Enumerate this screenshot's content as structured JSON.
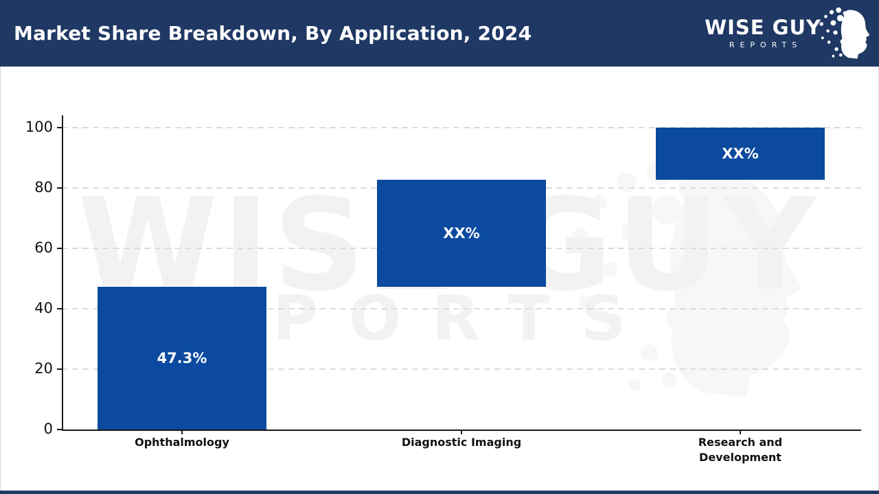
{
  "header": {
    "title": "Market Share Breakdown, By Application, 2024",
    "bg_color": "#1f3864"
  },
  "logo": {
    "line1": "WISE GUY",
    "line2": "REPORTS"
  },
  "watermark": {
    "line1": "WISE GUY",
    "line2": "REPORTS"
  },
  "chart_data": {
    "type": "bar",
    "subtype": "waterfall",
    "title": "Market Share Breakdown, By Application, 2024",
    "categories": [
      "Ophthalmology",
      "Diagnostic Imaging",
      "Research and Development"
    ],
    "bars": [
      {
        "category": "Ophthalmology",
        "label": "47.3%",
        "start": 0,
        "end": 47.3,
        "value_pct": 47.3
      },
      {
        "category": "Diagnostic Imaging",
        "label": "XX%",
        "start": 47.3,
        "end": 82.7,
        "value_pct": 35.4
      },
      {
        "category": "Research and Development",
        "label": "XX%",
        "start": 82.7,
        "end": 100,
        "value_pct": 17.3
      }
    ],
    "yticks": [
      0,
      20,
      40,
      60,
      80,
      100
    ],
    "ylim": [
      0,
      104
    ],
    "xlabel": "",
    "ylabel": "",
    "grid": "horizontal-dashed",
    "legend": "none",
    "bar_color": "#0b4a9f",
    "bar_label_color": "#ffffff",
    "gridline_color": "#dcdcdc",
    "axis_color": "#1a1a1a",
    "header_color": "#1f3864",
    "watermark_color": "#f2f2f2"
  }
}
